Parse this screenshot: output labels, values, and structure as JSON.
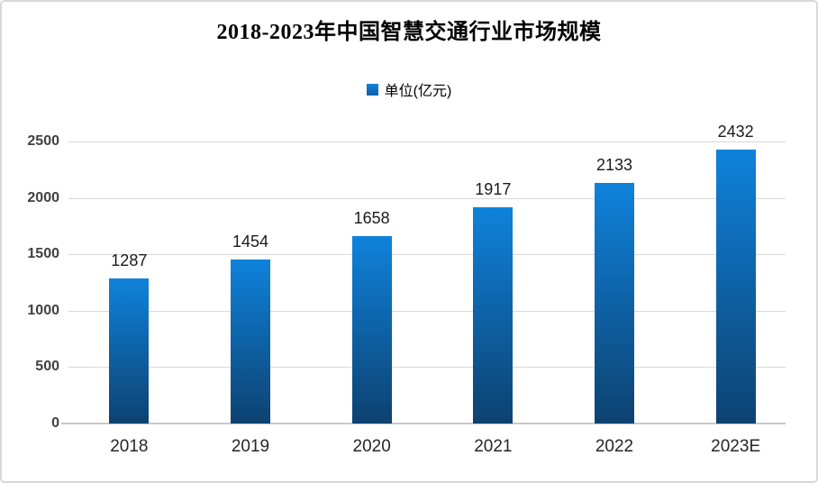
{
  "chart_data": {
    "type": "bar",
    "title": "2018-2023年中国智慧交通行业市场规模",
    "legend_label": "单位(亿元)",
    "legend_position": "top",
    "categories": [
      "2018",
      "2019",
      "2020",
      "2021",
      "2022",
      "2023E"
    ],
    "values": [
      1287,
      1454,
      1658,
      1917,
      2133,
      2432
    ],
    "xlabel": "",
    "ylabel": "",
    "ylim": [
      0,
      2500
    ],
    "yticks": [
      0,
      500,
      1000,
      1500,
      2000,
      2500
    ],
    "grid": true,
    "colors": {
      "bar_gradient_top": "#0f82db",
      "bar_gradient_bottom": "#0d4271",
      "legend_swatch_top": "#1482da",
      "legend_swatch_bottom": "#0d5fa4",
      "gridline": "#d9d9d9",
      "axis_line": "#c9c9c9",
      "tick_label": "#404040",
      "category_label": "#262626",
      "data_label": "#1a1a1a",
      "title_color": "#000000",
      "background": "#ffffff",
      "frame_border": "#d8d8d8"
    }
  }
}
